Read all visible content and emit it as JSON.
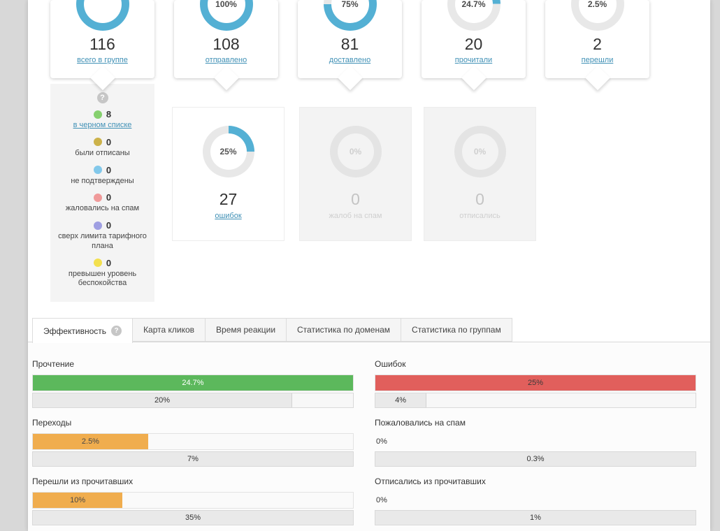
{
  "colors": {
    "donut_fill": "#54b0d4",
    "donut_track": "#e8e8e8",
    "donut_inactive": "#e4e4e4",
    "link": "#4191b6"
  },
  "summary_cards": [
    {
      "pct": 100,
      "pct_label": "",
      "count": "116",
      "label": "всего в группе",
      "active": true
    },
    {
      "pct": 100,
      "pct_label": "100%",
      "count": "108",
      "label": "отправлено",
      "active": true
    },
    {
      "pct": 75,
      "pct_label": "75%",
      "count": "81",
      "label": "доставлено",
      "active": true
    },
    {
      "pct": 24.7,
      "pct_label": "24.7%",
      "count": "20",
      "label": "прочитали",
      "active": true
    },
    {
      "pct": 2.5,
      "pct_label": "2.5%",
      "count": "2",
      "label": "перешли",
      "active": true
    }
  ],
  "legend": {
    "help_icon": "?",
    "items": [
      {
        "color": "#86d06e",
        "count": "8",
        "label": "в черном списке",
        "link": true
      },
      {
        "color": "#ccb24a",
        "count": "0",
        "label": "были отписаны",
        "link": false
      },
      {
        "color": "#82c8ea",
        "count": "0",
        "label": "не подтверждены",
        "link": false
      },
      {
        "color": "#f09a9a",
        "count": "0",
        "label": "жаловались на спам",
        "link": false
      },
      {
        "color": "#9f9fe2",
        "count": "0",
        "label": "сверх лимита тарифного плана",
        "link": false
      },
      {
        "color": "#f3e04f",
        "count": "0",
        "label": "превышен уровень беспокойства",
        "link": false
      }
    ]
  },
  "detail_cards": [
    {
      "pct": 25,
      "pct_label": "25%",
      "count": "27",
      "label": "ошибок",
      "active": true
    },
    {
      "pct": 0,
      "pct_label": "0%",
      "count": "0",
      "label": "жалоб на спам",
      "active": false
    },
    {
      "pct": 0,
      "pct_label": "0%",
      "count": "0",
      "label": "отписались",
      "active": false
    }
  ],
  "tabs": {
    "help_icon": "?",
    "items": [
      {
        "label": "Эффективность",
        "active": true
      },
      {
        "label": "Карта кликов",
        "active": false
      },
      {
        "label": "Время реакции",
        "active": false
      },
      {
        "label": "Статистика по доменам",
        "active": false
      },
      {
        "label": "Статистика по группам",
        "active": false
      }
    ]
  },
  "stats": {
    "left": [
      {
        "label": "Прочтение",
        "value": "24.7%",
        "value_width": 100,
        "color": "#5cb85c",
        "text_color": "#ffffff",
        "avg": "20%",
        "avg_width": 81
      },
      {
        "label": "Переходы",
        "value": "2.5%",
        "value_width": 36,
        "color": "#f0ad4e",
        "text_color": "#484848",
        "avg": "7%",
        "avg_width": 100
      },
      {
        "label": "Перешли из прочитавших",
        "value": "10%",
        "value_width": 28,
        "color": "#f0ad4e",
        "text_color": "#484848",
        "avg": "35%",
        "avg_width": 100
      }
    ],
    "right": [
      {
        "label": "Ошибок",
        "value": "25%",
        "value_width": 100,
        "color": "#e15f5c",
        "text_color": "#3a3a3a",
        "avg": "4%",
        "avg_width": 16
      },
      {
        "label": "Пожаловались на спам",
        "value": "0%",
        "value_width": 0,
        "color": "",
        "text_color": "#333333",
        "avg": "0.3%",
        "avg_width": 100
      },
      {
        "label": "Отписались из прочитавших",
        "value": "0%",
        "value_width": 0,
        "color": "",
        "text_color": "#333333",
        "avg": "1%",
        "avg_width": 100
      }
    ]
  }
}
